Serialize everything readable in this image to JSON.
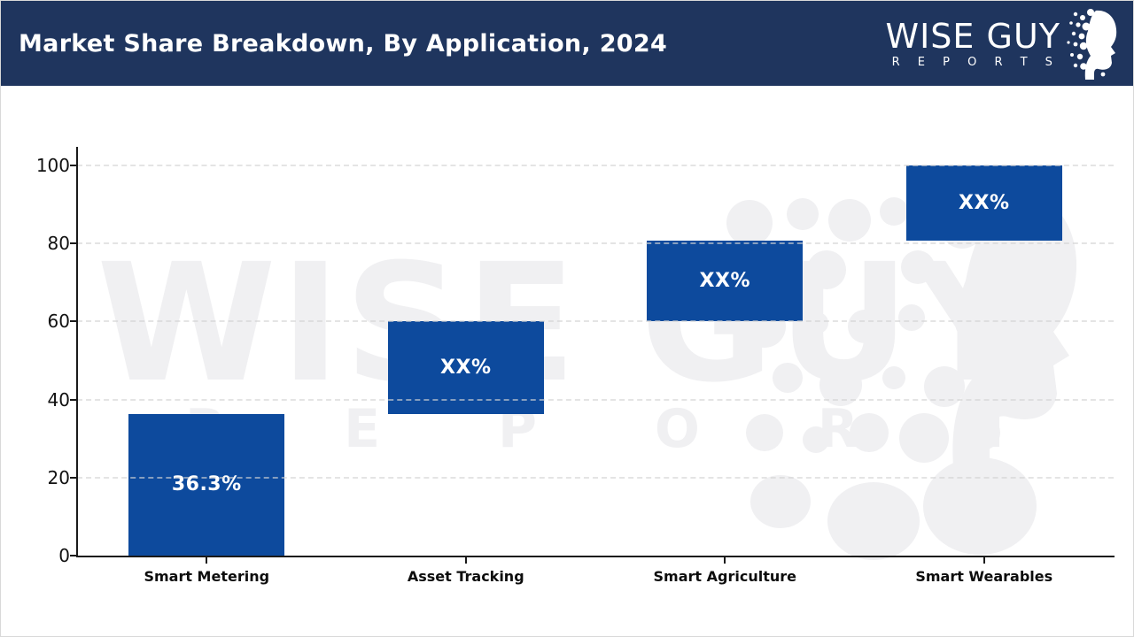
{
  "header": {
    "title": "Market Share Breakdown, By Application, 2024",
    "logo": {
      "name": "WISE GUY",
      "sub": "R E P O R T S"
    }
  },
  "colors": {
    "header_bg": "#1f355e",
    "bar": "#0d4a9d",
    "grid": "#e3e3e3",
    "axis": "#1a1a1a",
    "watermark": "#f0f0f2",
    "bar_label_text": "#ffffff"
  },
  "watermark": {
    "line1": "WISE GUY",
    "line2": "R E P O R T S"
  },
  "chart_data": {
    "type": "bar",
    "variant": "waterfall",
    "title": "Market Share Breakdown, By Application, 2024",
    "xlabel": "",
    "ylabel": "",
    "categories": [
      "Smart Metering",
      "Asset Tracking",
      "Smart Agriculture",
      "Smart Wearables"
    ],
    "segments": [
      {
        "category": "Smart Metering",
        "start": 0,
        "end": 36.3,
        "label": "36.3%"
      },
      {
        "category": "Asset Tracking",
        "start": 36.3,
        "end": 60.0,
        "label": "XX%"
      },
      {
        "category": "Smart Agriculture",
        "start": 60.0,
        "end": 80.7,
        "label": "XX%"
      },
      {
        "category": "Smart Wearables",
        "start": 80.7,
        "end": 100,
        "label": "XX%"
      }
    ],
    "y_ticks": [
      0,
      20,
      40,
      60,
      80,
      100
    ],
    "ylim": [
      0,
      105
    ],
    "grid": "horizontal-dashed",
    "legend": "none"
  }
}
